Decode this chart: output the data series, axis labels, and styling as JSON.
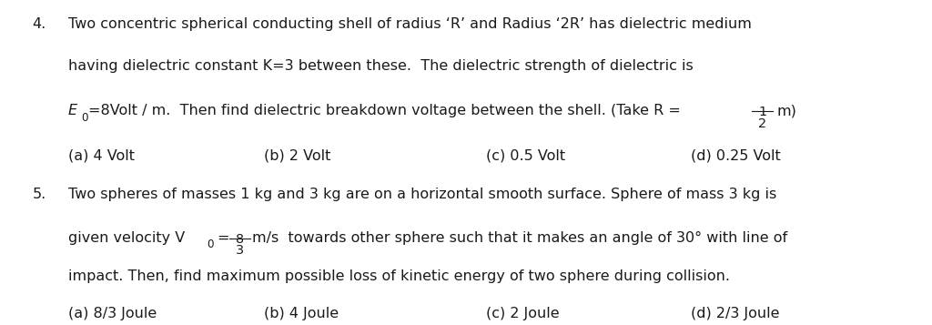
{
  "background_color": "#ffffff",
  "figsize": [
    10.24,
    3.57
  ],
  "dpi": 100,
  "q4": {
    "number": "4.",
    "line1": "Two concentric spherical conducting shell of radius ‘R’ and Radius ‘2R’ has dielectric medium",
    "line2": "having dielectric constant K=3 between these.  The dielectric strength of dielectric is",
    "line3_left": "E",
    "line3_sub": "0",
    "line3_right": "=8Volt / m.  Then find dielectric breakdown voltage between the shell. (Take R =",
    "line3_frac_num": "1",
    "line3_frac_den": "2",
    "line3_frac_unit": "m)",
    "options": "(a) 4 Volt          (b) 2 Volt                (c) 0.5 Volt                 (d) 0.25 Volt"
  },
  "q5": {
    "number": "5.",
    "line1": "Two spheres of masses 1 kg and 3 kg are on a horizontal smooth surface. Sphere of mass 3 kg is",
    "line2_pre": "given velocity V",
    "line2_sub": "0",
    "line2_frac_num": "8",
    "line2_frac_den": "3",
    "line2_post": "m/s  towards other sphere such that it makes an angle of 30° with line of",
    "line3": "impact. Then, find maximum possible loss of kinetic energy of two sphere during collision.",
    "options": "(a) 8/3 Joule          (b) 4 Joule               (c) 2 Joule                (d) 2/3 Joule"
  },
  "font_size": 11.5,
  "font_family": "DejaVu Sans",
  "text_color": "#1a1a1a"
}
